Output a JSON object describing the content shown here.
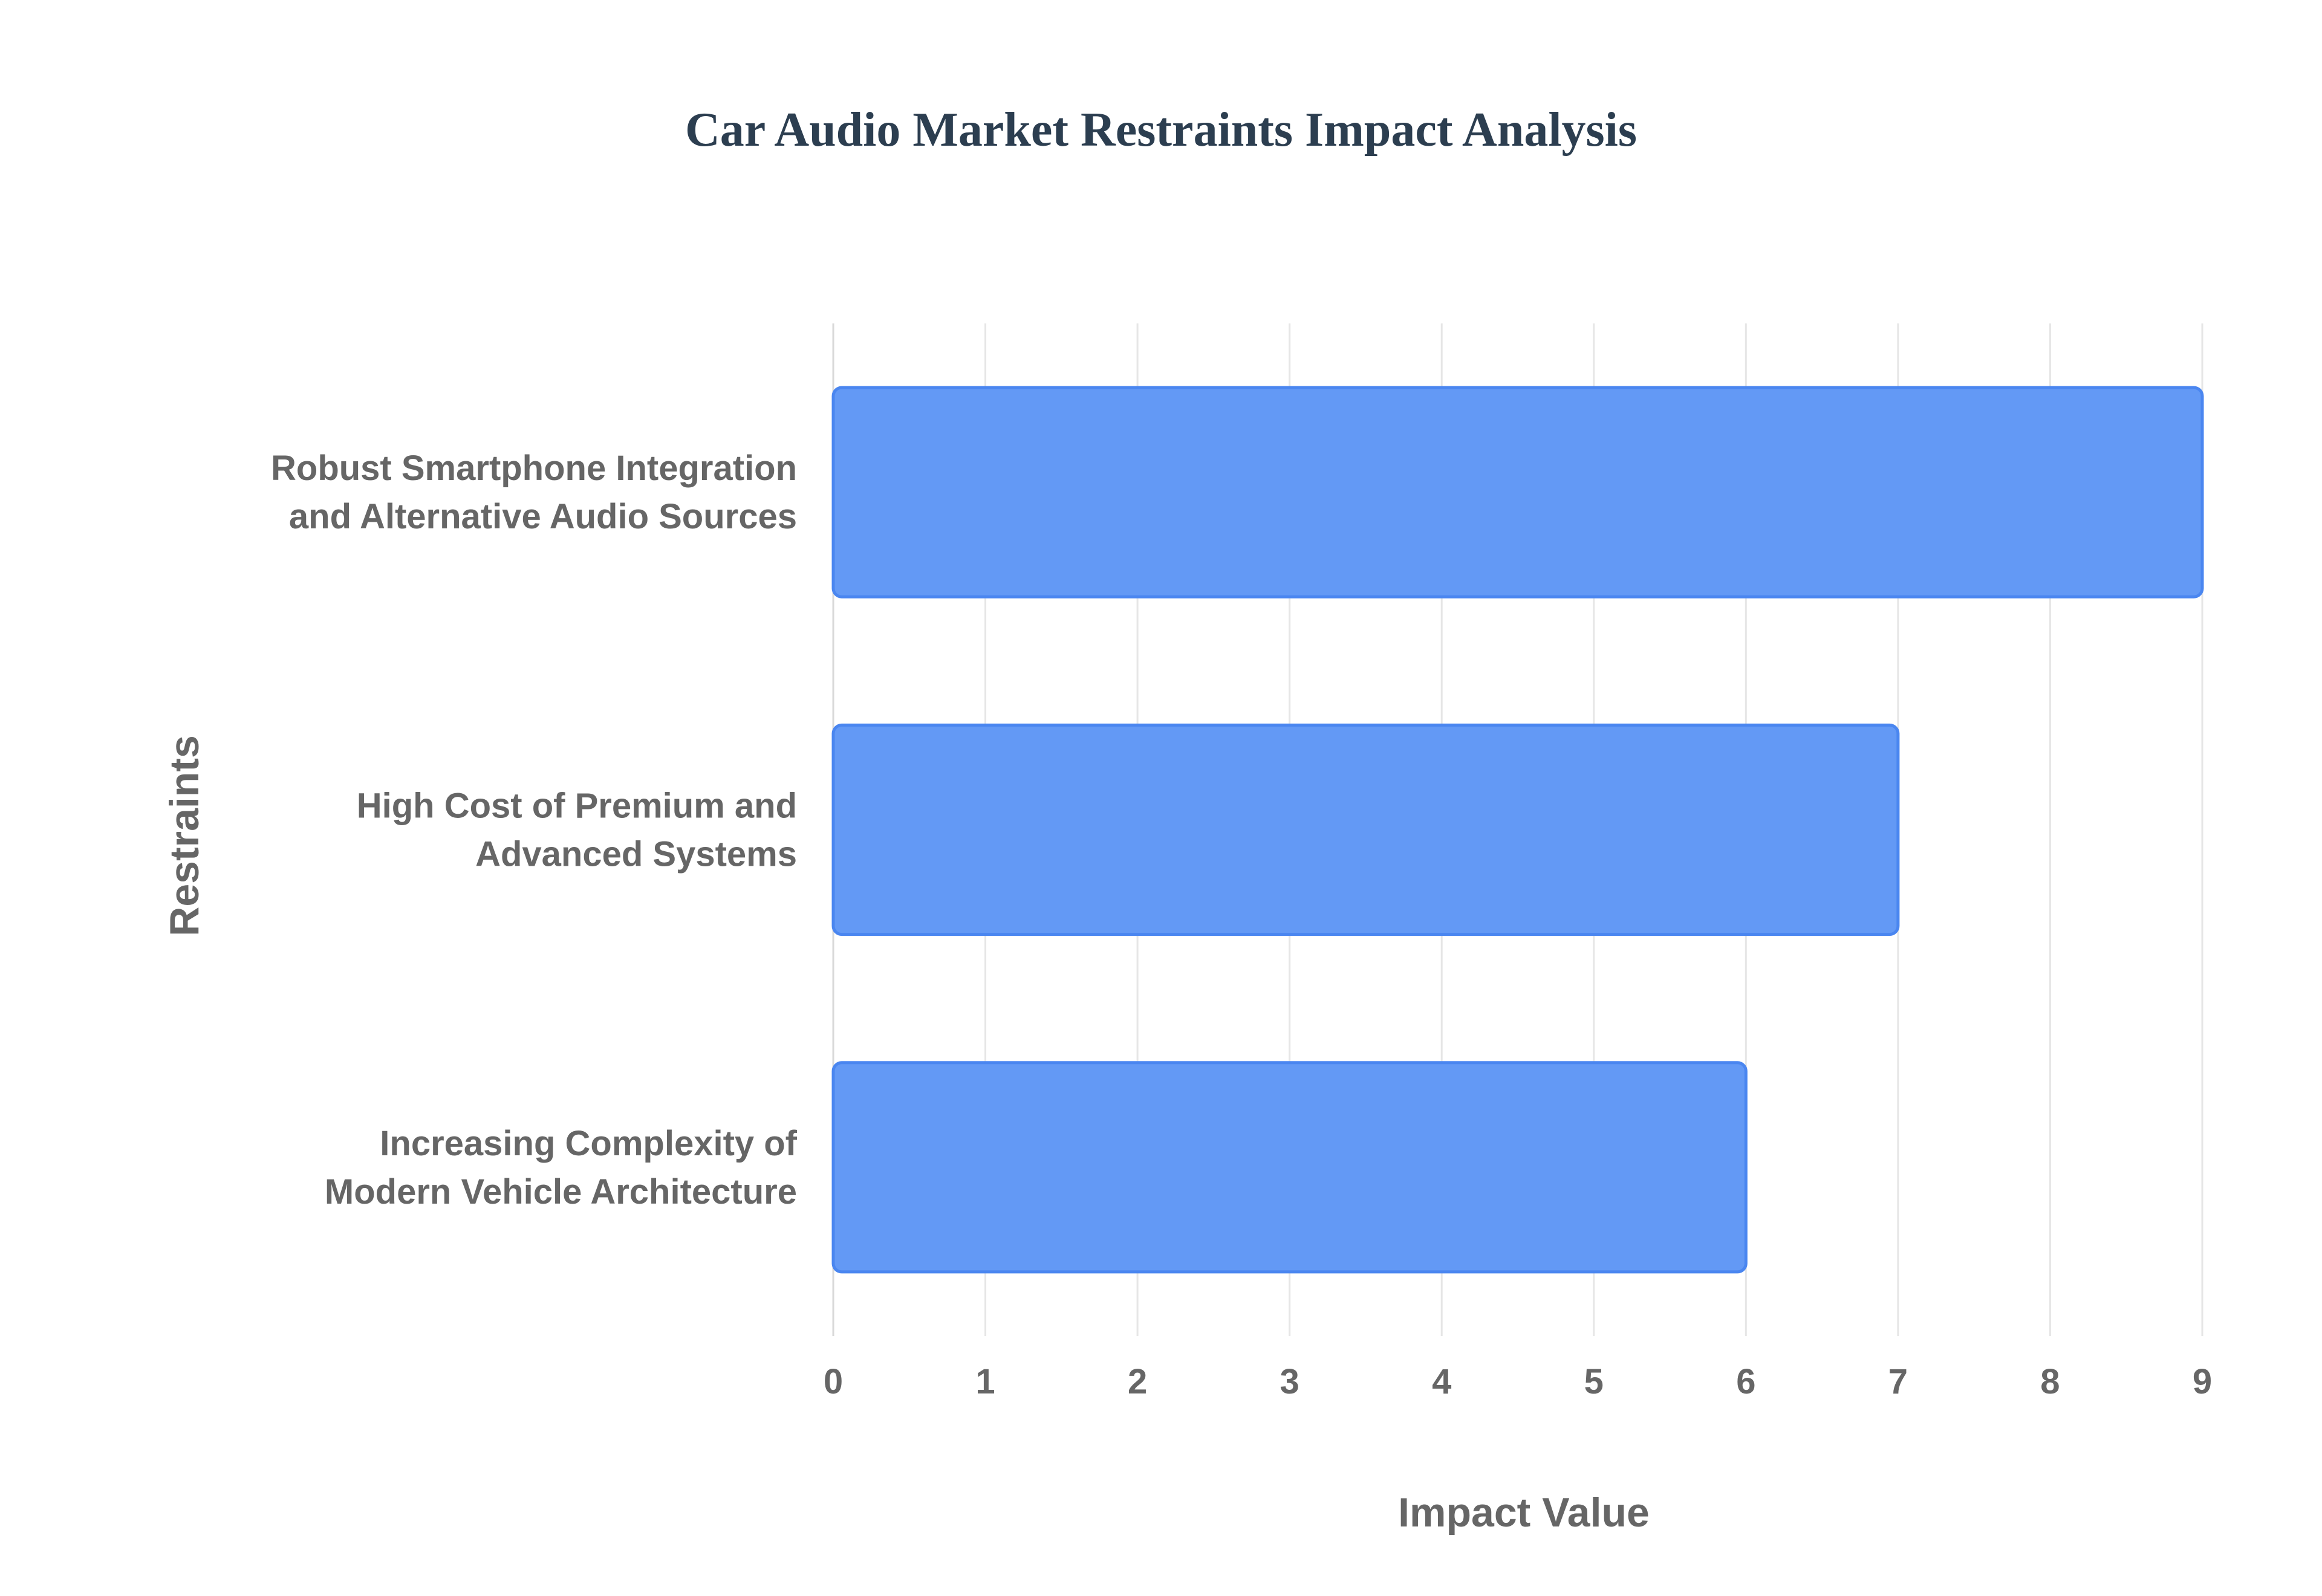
{
  "chart_data": {
    "type": "bar",
    "orientation": "horizontal",
    "title": "Car Audio Market Restraints Impact Analysis",
    "xlabel": "Impact Value",
    "ylabel": "Restraints",
    "xlim": [
      0,
      9
    ],
    "xticks": [
      0,
      1,
      2,
      3,
      4,
      5,
      6,
      7,
      8,
      9
    ],
    "categories": [
      [
        "Robust Smartphone Integration",
        "and Alternative Audio Sources"
      ],
      [
        "High Cost of Premium and",
        "Advanced Systems"
      ],
      [
        "Increasing Complexity of",
        "Modern Vehicle Architecture"
      ]
    ],
    "values": [
      9,
      7,
      6
    ],
    "grid": true,
    "legend": "none",
    "colors": {
      "bar_fill": "#6399f5",
      "bar_stroke": "#4a86f0",
      "grid": "#e6e6e6",
      "tick_text": "#666666",
      "label_text": "#666666",
      "title": "#2c3e50"
    }
  }
}
